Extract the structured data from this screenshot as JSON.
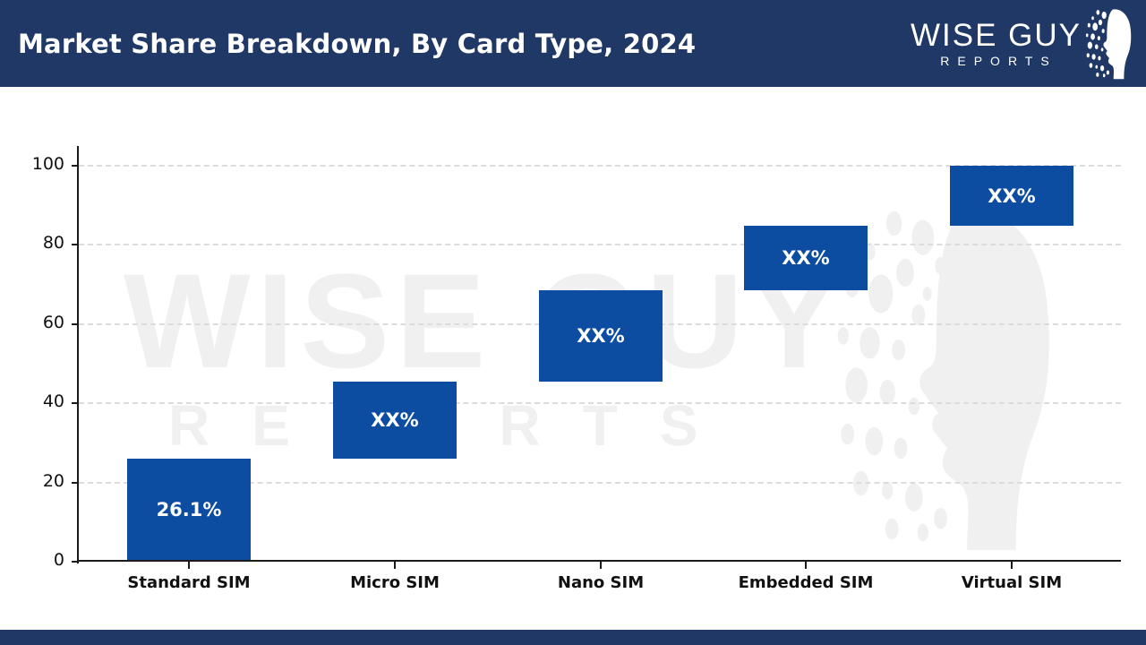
{
  "header": {
    "title": "Market Share Breakdown, By Card Type, 2024",
    "logo": {
      "wordmark": "WISE GUY",
      "tagline": "REPORTS"
    }
  },
  "watermark": {
    "wordmark": "WISE GUY",
    "tagline": "REPORTS"
  },
  "chart_data": {
    "type": "bar",
    "subtype": "waterfall-floating-bars",
    "title": "Market Share Breakdown, By Card Type, 2024",
    "categories": [
      "Standard SIM",
      "Micro SIM",
      "Nano SIM",
      "Embedded SIM",
      "Virtual SIM"
    ],
    "series": [
      {
        "category": "Standard SIM",
        "start": 0,
        "end": 26.1,
        "label": "26.1%"
      },
      {
        "category": "Micro SIM",
        "start": 26.1,
        "end": 45.5,
        "label": "XX%"
      },
      {
        "category": "Nano SIM",
        "start": 45.5,
        "end": 68.5,
        "label": "XX%"
      },
      {
        "category": "Embedded SIM",
        "start": 68.5,
        "end": 84.8,
        "label": "XX%"
      },
      {
        "category": "Virtual SIM",
        "start": 84.8,
        "end": 100,
        "label": "XX%"
      }
    ],
    "ylabel": "",
    "xlabel": "",
    "ylim": [
      0,
      105
    ],
    "yticks": [
      0,
      20,
      40,
      60,
      80,
      100
    ],
    "grid": "horizontal-dashed",
    "legend": "none",
    "colors": {
      "bar": "#0c4da2",
      "bar_label": "#ffffff",
      "axis": "#1a1a1a",
      "gridline": "#dcdcdc",
      "header_band": "#1f3866",
      "footer_band": "#1f3866",
      "watermark": "#f0f0f0",
      "tick_label": "#111111"
    }
  }
}
